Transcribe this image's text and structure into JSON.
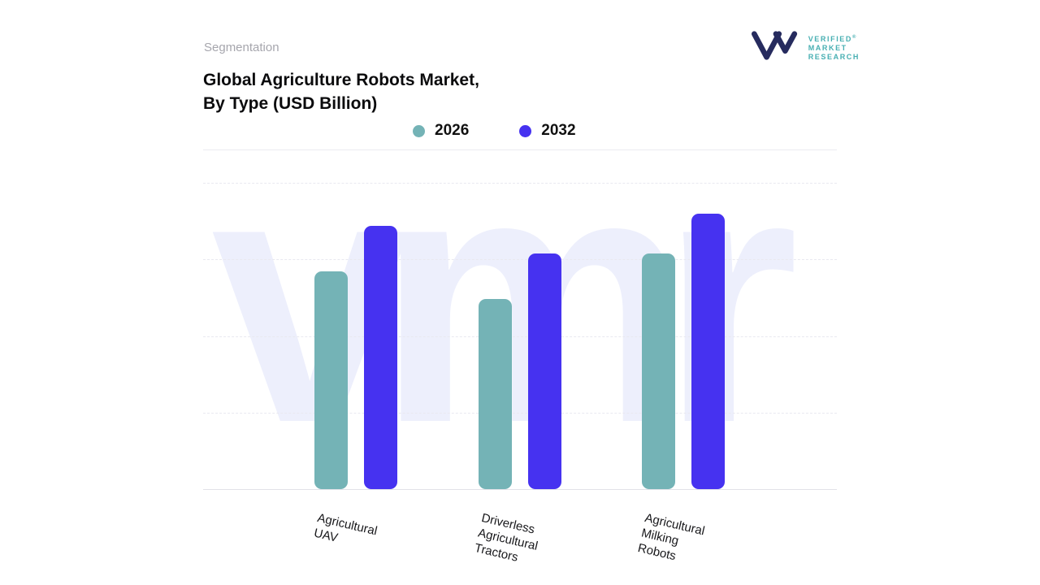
{
  "header": {
    "eyebrow": "Segmentation",
    "title_line1": "Global Agriculture Robots Market,",
    "title_line2": "By Type (USD Billion)"
  },
  "logo": {
    "line1": "VERIFIED",
    "line2": "MARKET",
    "line3": "RESEARCH",
    "registered": "®"
  },
  "watermark": "vmr",
  "chart_data": {
    "type": "bar",
    "title": "Global Agriculture Robots Market, By Type (USD Billion)",
    "categories": [
      "Agricultural UAV",
      "Driverless Agricultural Tractors",
      "Agricultural Milking Robots"
    ],
    "series": [
      {
        "name": "2026",
        "color": "#74b3b6",
        "values": [
          71,
          62,
          77
        ]
      },
      {
        "name": "2032",
        "color": "#4632f0",
        "values": [
          86,
          77,
          90
        ]
      }
    ],
    "ylabel": "USD Billion",
    "ylim": [
      0,
      100
    ],
    "value_axis_labels_visible": false,
    "values_note": "No numeric axis or data labels shown; values are estimated relative bar heights (% of plot height)",
    "grid": "horizontal dashed gridlines, solid baseline",
    "legend_position": "top"
  }
}
